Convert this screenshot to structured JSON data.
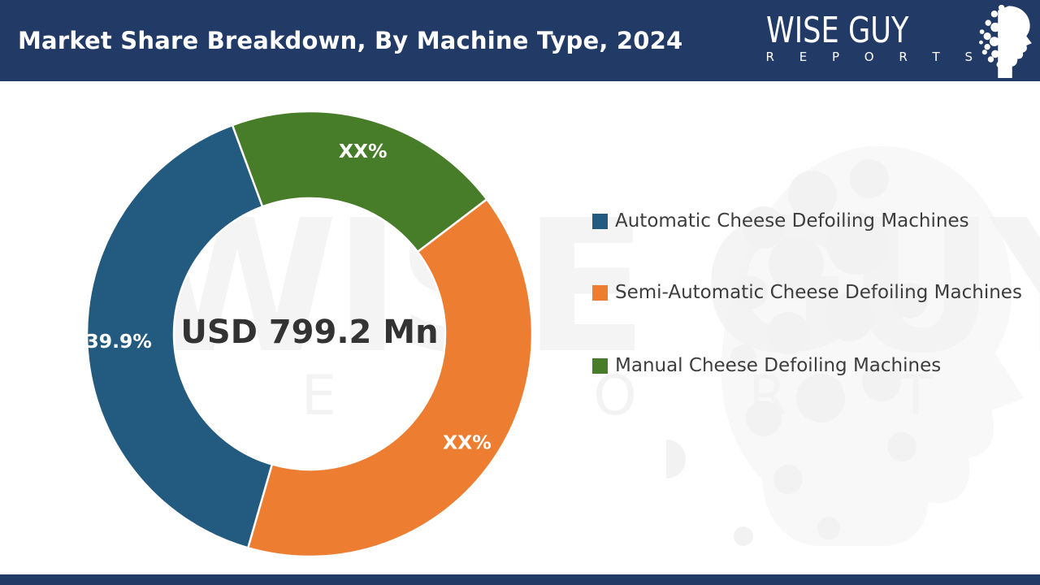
{
  "header": {
    "title": "Market Share Breakdown, By Machine Type, 2024",
    "bg_color": "#213A66",
    "logo": {
      "line1": "WISE GUY",
      "line2": "R E P O R T S"
    }
  },
  "chart_data": {
    "type": "donut",
    "title": "Market Share Breakdown, By Machine Type, 2024",
    "center_label": "USD 799.2 Mn",
    "start_angle_deg_cw_from_north": -20.3,
    "legend_position": "right",
    "segments": [
      {
        "id": "manual",
        "name": "Manual Cheese Defoiling Machines",
        "display_label": "XX%",
        "value_pct": 20.3,
        "color": "#477C28"
      },
      {
        "id": "semi-automatic",
        "name": "Semi-Automatic Cheese Defoiling Machines",
        "display_label": "XX%",
        "value_pct": 39.8,
        "color": "#ED7D31"
      },
      {
        "id": "automatic",
        "name": "Automatic Cheese Defoiling Machines",
        "display_label": "39.9%",
        "value_pct": 39.9,
        "color": "#235A7F"
      }
    ]
  },
  "legend": {
    "items": [
      {
        "label": "Automatic Cheese Defoiling Machines",
        "color": "#235A7F"
      },
      {
        "label": "Semi-Automatic Cheese Defoiling Machines",
        "color": "#ED7D31"
      },
      {
        "label": "Manual Cheese Defoiling Machines",
        "color": "#477C28"
      }
    ]
  },
  "watermark": {
    "line1": "WISE GUY",
    "line2": "R E P O R T S"
  },
  "footer": {
    "bg_color": "#213A66"
  }
}
